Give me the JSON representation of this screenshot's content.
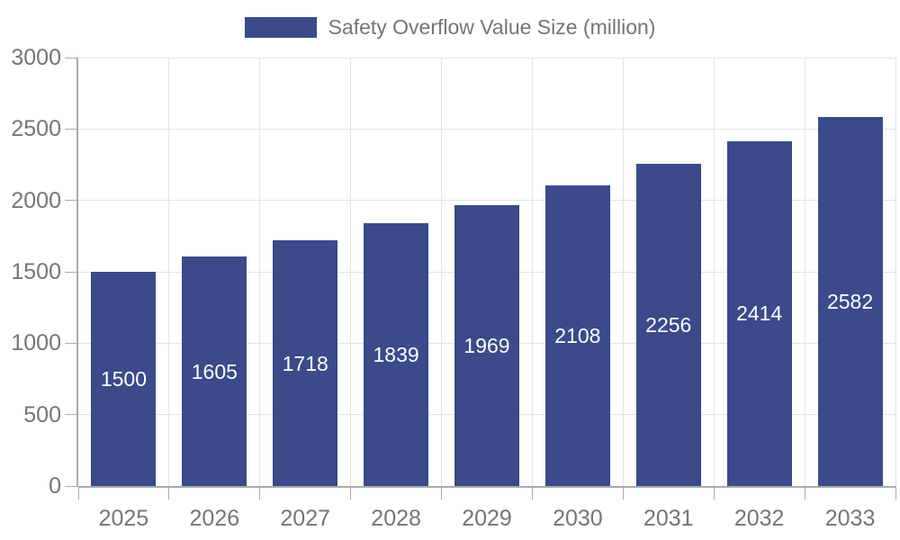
{
  "chart_data": {
    "type": "bar",
    "title": "Safety Overflow Value Size (million)",
    "categories": [
      "2025",
      "2026",
      "2027",
      "2028",
      "2029",
      "2030",
      "2031",
      "2032",
      "2033"
    ],
    "values": [
      1500,
      1605,
      1718,
      1839,
      1969,
      2108,
      2256,
      2414,
      2582
    ],
    "xlabel": "",
    "ylabel": "",
    "ylim": [
      0,
      3000
    ],
    "yticks": [
      0,
      500,
      1000,
      1500,
      2000,
      2500,
      3000
    ],
    "grid": true,
    "legend_position": "top-center",
    "colors": {
      "bar": "#3a4a8a",
      "bar_value_label": "#ffffff",
      "axis": "#ababab",
      "grid": "#e4e4e4",
      "tick_label": "#757575",
      "legend_text": "#757575",
      "background": "#ffffff"
    }
  }
}
